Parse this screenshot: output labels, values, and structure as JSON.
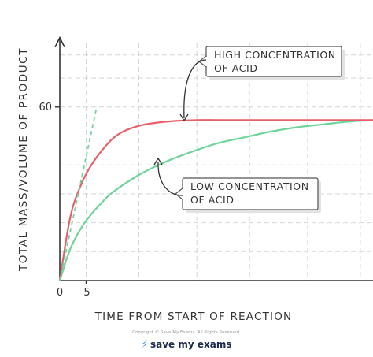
{
  "chart_data": {
    "type": "line",
    "title": "",
    "xlabel": "TIME FROM START OF REACTION",
    "ylabel": "TOTAL MASS/VOLUME OF PRODUCT",
    "x_ticks": [
      "0",
      "5"
    ],
    "y_ticks": [
      "60"
    ],
    "xlim": [
      0,
      71
    ],
    "ylim": [
      0,
      84
    ],
    "grid": true,
    "series": [
      {
        "name": "HIGH CONCENTRATION OF ACID",
        "color": "#e8606a",
        "x": [
          0,
          2,
          4,
          6,
          8,
          10,
          12,
          15,
          18,
          22,
          26,
          30,
          35,
          40,
          50,
          60
        ],
        "y": [
          0,
          22,
          33,
          40,
          45,
          49,
          51.5,
          53.5,
          54.5,
          55.2,
          55.5,
          55.5,
          55.5,
          55.5,
          55.5,
          55.5
        ]
      },
      {
        "name": "LOW CONCENTRATION OF ACID",
        "color": "#6fd49a",
        "x": [
          0,
          2,
          4,
          6,
          8,
          10,
          15,
          20,
          25,
          30,
          35,
          40,
          45,
          50,
          55,
          60
        ],
        "y": [
          0,
          11,
          18,
          23,
          27,
          30.5,
          36.5,
          41,
          44.5,
          47.5,
          49.5,
          51.5,
          53,
          54,
          55,
          55.5
        ]
      }
    ],
    "tangent": {
      "color": "#6fd49a",
      "dashed": true,
      "x": [
        0,
        7
      ],
      "y": [
        0,
        60
      ]
    },
    "annotations": [
      {
        "series": "HIGH CONCENTRATION OF ACID",
        "lines": [
          "HIGH CONCENTRATION",
          "OF ACID"
        ]
      },
      {
        "series": "LOW CONCENTRATION OF ACID",
        "lines": [
          "LOW CONCENTRATION",
          "OF ACID"
        ]
      }
    ]
  },
  "footer": {
    "copyright": "Copyright © Save My Exams. All Rights Reserved.",
    "brand_icon": "bolt-icon",
    "brand_text": "save my exams"
  }
}
